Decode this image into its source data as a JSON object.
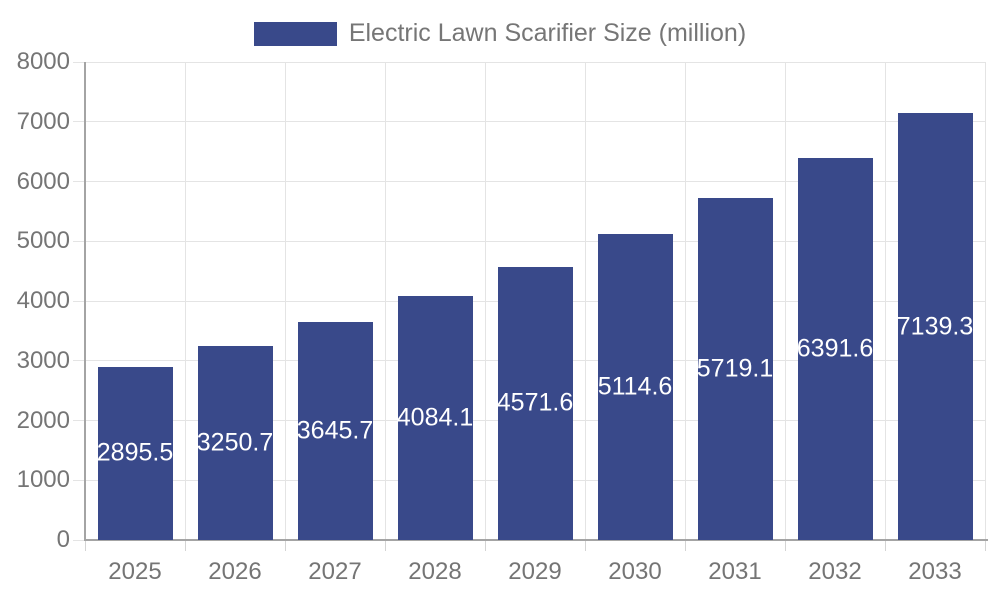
{
  "chart_data": {
    "type": "bar",
    "title": "Electric Lawn Scarifier Size (million)",
    "legend": {
      "position": "top",
      "entries": [
        "Electric Lawn Scarifier Size (million)"
      ]
    },
    "categories": [
      "2025",
      "2026",
      "2027",
      "2028",
      "2029",
      "2030",
      "2031",
      "2032",
      "2033"
    ],
    "series": [
      {
        "name": "Electric Lawn Scarifier Size (million)",
        "values": [
          2895.5,
          3250.7,
          3645.7,
          4084.1,
          4571.6,
          5114.6,
          5719.1,
          6391.6,
          7139.3
        ],
        "value_labels": [
          "2895.5",
          "3250.7",
          "3645.7",
          "4084.1",
          "4571.6",
          "5114.6",
          "5719.1",
          "6391.6",
          "7139.3"
        ]
      }
    ],
    "xlabel": "",
    "ylabel": "",
    "ylim": [
      0,
      8000
    ],
    "yticks": [
      0,
      1000,
      2000,
      3000,
      4000,
      5000,
      6000,
      7000,
      8000
    ],
    "grid": true,
    "value_label_position": "inside-middle",
    "colors": {
      "bar": "#39498A",
      "grid": "#e4e4e4",
      "axis_line": "#a4a4a4",
      "tick": "#d4d4d4",
      "axis_text": "#757575",
      "legend_text": "#767676",
      "value_label": "#ffffff",
      "background": "#ffffff"
    }
  }
}
